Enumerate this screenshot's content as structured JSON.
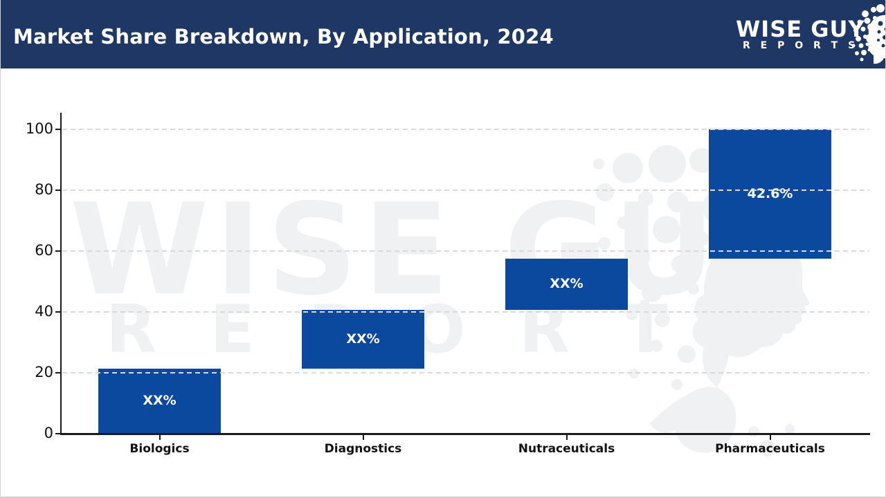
{
  "header": {
    "title": "Market Share Breakdown, By Application, 2024",
    "logo": {
      "line1": "WISE GUY",
      "line2": "R E P O R T S"
    }
  },
  "watermark": {
    "line1": "WISE GUY",
    "line2": "R E P O R T S"
  },
  "colors": {
    "header_bg": "#1e3764",
    "bar": "#0a499e",
    "gridline": "#d9d9d9",
    "axis": "#1a1a1a",
    "bar_label_text": "#ffffff",
    "watermark": "#f0f1f3"
  },
  "chart_data": {
    "type": "bar",
    "subtype": "waterfall",
    "title": "Market Share Breakdown, By Application, 2024",
    "xlabel": "",
    "ylabel": "",
    "categories": [
      "Biologics",
      "Diagnostics",
      "Nutraceuticals",
      "Pharmaceuticals"
    ],
    "segments": [
      {
        "category": "Biologics",
        "start": 0,
        "end": 21.3,
        "value_label": "XX%"
      },
      {
        "category": "Diagnostics",
        "start": 21.3,
        "end": 40.6,
        "value_label": "XX%"
      },
      {
        "category": "Nutraceuticals",
        "start": 40.6,
        "end": 57.4,
        "value_label": "XX%"
      },
      {
        "category": "Pharmaceuticals",
        "start": 57.4,
        "end": 100.0,
        "value_label": "42.6%"
      }
    ],
    "yticks": [
      0,
      20,
      40,
      60,
      80,
      100
    ],
    "ylim": [
      0,
      100
    ],
    "grid": "horizontal dashed gridlines drawn above bars",
    "legend": "none"
  }
}
